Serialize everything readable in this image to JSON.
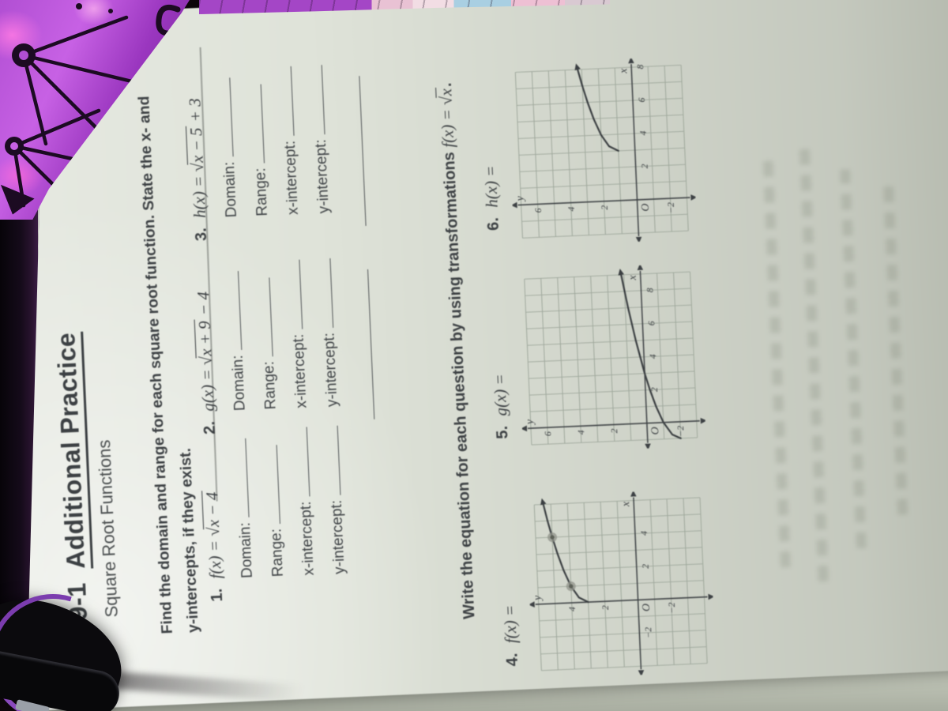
{
  "worksheet": {
    "lesson": "9-1",
    "title": "Additional Practice",
    "subtitle": "Square Root Functions",
    "instructions_line1": "Find the domain and range for each square root function. State the x- and",
    "instructions_line2": "y-intercepts, if they exist.",
    "sqrt": "√",
    "section2_prefix": "Write the equation for each question by using transformations",
    "section2_fn": "f(x) = ",
    "section2_radicand": "x",
    "section2_period": "."
  },
  "problems": [
    {
      "number": "1.",
      "fn": "f(x) = ",
      "radicand": "x − 4",
      "suffix": "",
      "fields": [
        "Domain:",
        "Range:",
        "x-intercept:",
        "y-intercept:"
      ]
    },
    {
      "number": "2.",
      "fn": "g(x) = ",
      "radicand": "x + 9",
      "suffix": " − 4",
      "fields": [
        "Domain:",
        "Range:",
        "x-intercept:",
        "y-intercept:"
      ]
    },
    {
      "number": "3.",
      "fn": "h(x) = ",
      "radicand": "x − 5",
      "suffix": " + 3",
      "fields": [
        "Domain:",
        "Range:",
        "x-intercept:",
        "y-intercept:"
      ]
    }
  ],
  "graph_problems": [
    {
      "number": "4.",
      "label": "f(x) ="
    },
    {
      "number": "5.",
      "label": "g(x) ="
    },
    {
      "number": "6.",
      "label": "h(x) ="
    }
  ],
  "chart_data": [
    {
      "type": "line",
      "title": "Problem 4 graph",
      "equation_depicted": "y = √x + 3",
      "xlim": [
        -4,
        6
      ],
      "ylim": [
        -4,
        6
      ],
      "grid": true,
      "x_axis_label": "x",
      "y_axis_label": "y",
      "origin_label": "O",
      "x_ticks": [
        {
          "v": -2,
          "label": "−2"
        },
        {
          "v": 2,
          "label": "2"
        },
        {
          "v": 4,
          "label": "4"
        }
      ],
      "y_ticks": [
        {
          "v": -2,
          "label": "−2"
        },
        {
          "v": 2,
          "label": "2"
        },
        {
          "v": 4,
          "label": "4"
        }
      ],
      "points": [
        [
          0,
          3
        ],
        [
          0.3,
          3.55
        ],
        [
          1,
          4
        ],
        [
          2,
          4.41
        ],
        [
          3,
          4.73
        ],
        [
          4,
          5
        ],
        [
          5,
          5.24
        ],
        [
          6,
          5.45
        ]
      ],
      "marked_points": [
        [
          1,
          4
        ],
        [
          4,
          5
        ]
      ]
    },
    {
      "type": "line",
      "title": "Problem 5 graph",
      "equation_depicted": "y = √(x + 1) − 2",
      "xlim": [
        -1,
        9
      ],
      "ylim": [
        -3,
        7
      ],
      "grid": true,
      "x_axis_label": "x",
      "y_axis_label": "y",
      "origin_label": "O",
      "x_ticks": [
        {
          "v": 2,
          "label": "2"
        },
        {
          "v": 4,
          "label": "4"
        },
        {
          "v": 6,
          "label": "6"
        },
        {
          "v": 8,
          "label": "8"
        }
      ],
      "y_ticks": [
        {
          "v": -2,
          "label": "−2"
        },
        {
          "v": 2,
          "label": "2"
        },
        {
          "v": 4,
          "label": "4"
        },
        {
          "v": 6,
          "label": "6"
        }
      ],
      "points": [
        [
          -1,
          -2
        ],
        [
          -0.75,
          -1.5
        ],
        [
          0,
          -1
        ],
        [
          1,
          -0.59
        ],
        [
          2,
          -0.27
        ],
        [
          3,
          0
        ],
        [
          5,
          0.45
        ],
        [
          7,
          0.83
        ],
        [
          9,
          1.16
        ]
      ],
      "marked_points": []
    },
    {
      "type": "line",
      "title": "Problem 6 graph",
      "equation_depicted": "y = √(x − 3) + 1",
      "xlim": [
        -2,
        8
      ],
      "ylim": [
        -3,
        7
      ],
      "grid": true,
      "x_axis_label": "x",
      "y_axis_label": "y",
      "origin_label": "O",
      "x_ticks": [
        {
          "v": 2,
          "label": "2"
        },
        {
          "v": 4,
          "label": "4"
        },
        {
          "v": 6,
          "label": "6"
        },
        {
          "v": 8,
          "label": "8"
        }
      ],
      "y_ticks": [
        {
          "v": -2,
          "label": "−2"
        },
        {
          "v": 2,
          "label": "2"
        },
        {
          "v": 4,
          "label": "4"
        },
        {
          "v": 6,
          "label": "6"
        }
      ],
      "points": [
        [
          3,
          1
        ],
        [
          3.3,
          1.55
        ],
        [
          4,
          2
        ],
        [
          5,
          2.41
        ],
        [
          6,
          2.73
        ],
        [
          7,
          3
        ],
        [
          8,
          3.24
        ]
      ],
      "marked_points": []
    }
  ],
  "colors": {
    "paper": "#dfe3d9",
    "ink": "#3c4043",
    "fabric_purple": "#a94ccb",
    "fabric_glow": "#ff6ad9",
    "background_dark": "#140a10",
    "strip_blue": "#a9cfe2",
    "strip_pink": "#eec0d4"
  }
}
